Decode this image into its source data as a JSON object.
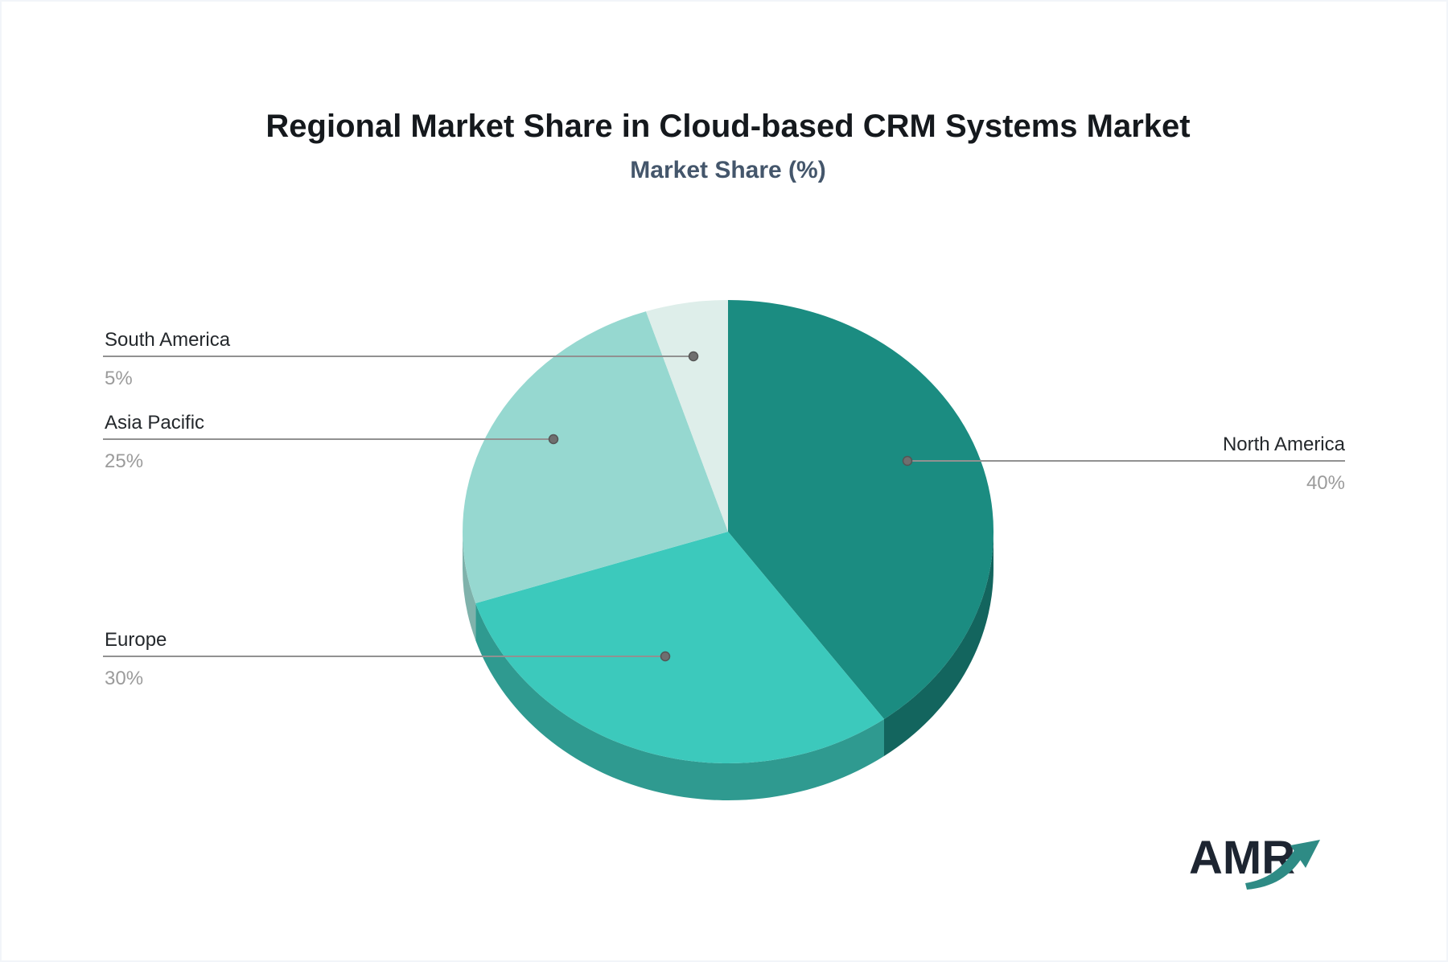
{
  "title": "Regional Market Share in Cloud-based CRM Systems Market",
  "subtitle": "Market Share (%)",
  "logo": {
    "text": "AMR"
  },
  "chart_data": {
    "type": "pie",
    "title": "Regional Market Share in Cloud-based CRM Systems Market",
    "subtitle": "Market Share (%)",
    "unit": "%",
    "style": "3d-pie",
    "rotation": "clockwise-from-top",
    "legend": "callout-labels",
    "slices": [
      {
        "name": "North America",
        "value": 40,
        "display": "40%",
        "color": "#1b8c81",
        "side_color": "#13655e"
      },
      {
        "name": "Europe",
        "value": 30,
        "display": "30%",
        "color": "#3cc9bc",
        "side_color": "#2f9a90"
      },
      {
        "name": "Asia Pacific",
        "value": 25,
        "display": "25%",
        "color": "#96d8d0",
        "side_color": "#7fb2ab"
      },
      {
        "name": "South America",
        "value": 5,
        "display": "5%",
        "color": "#deeeea",
        "side_color": "#c3dcd6"
      }
    ]
  }
}
